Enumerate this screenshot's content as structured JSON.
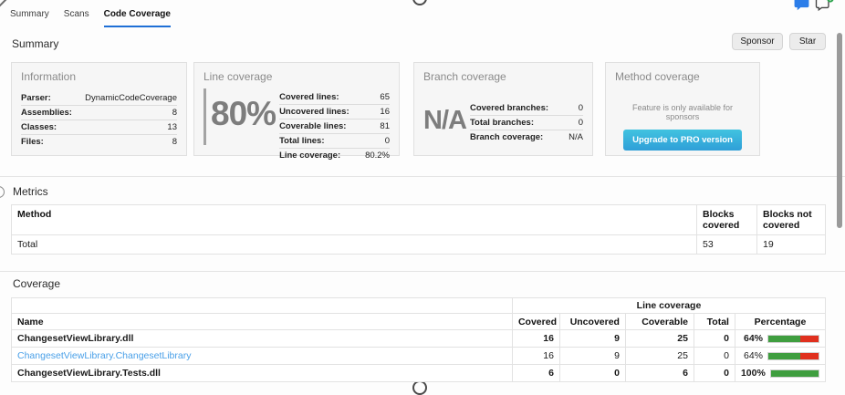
{
  "colors": {
    "tab_accent": "#1f6fd6",
    "link_blue": "#4aa0e8",
    "bar_green": "#3f9e3f",
    "bar_red": "#e0301e",
    "pro_top": "#41c3e0",
    "pro_bottom": "#2f9fd8"
  },
  "tabs": [
    {
      "label": "Summary"
    },
    {
      "label": "Scans"
    },
    {
      "label": "Code Coverage"
    }
  ],
  "summary": {
    "heading": "Summary",
    "sponsor_button": "Sponsor",
    "star_button": "Star",
    "information_card": {
      "title": "Information",
      "rows": [
        {
          "label": "Parser:",
          "value": "DynamicCodeCoverage"
        },
        {
          "label": "Assemblies:",
          "value": "8"
        },
        {
          "label": "Classes:",
          "value": "13"
        },
        {
          "label": "Files:",
          "value": "8"
        }
      ]
    },
    "line_coverage_card": {
      "title": "Line coverage",
      "big_value": "80%",
      "rows": [
        {
          "label": "Covered lines:",
          "value": "65"
        },
        {
          "label": "Uncovered lines:",
          "value": "16"
        },
        {
          "label": "Coverable lines:",
          "value": "81"
        },
        {
          "label": "Total lines:",
          "value": "0"
        },
        {
          "label": "Line coverage:",
          "value": "80.2%"
        }
      ]
    },
    "branch_coverage_card": {
      "title": "Branch coverage",
      "big_value": "N/A",
      "rows": [
        {
          "label": "Covered branches:",
          "value": "0"
        },
        {
          "label": "Total branches:",
          "value": "0"
        },
        {
          "label": "Branch coverage:",
          "value": "N/A"
        }
      ]
    },
    "method_coverage_card": {
      "title": "Method coverage",
      "note": "Feature is only available for sponsors",
      "upgrade_button": "Upgrade to PRO version"
    }
  },
  "metrics": {
    "heading": "Metrics",
    "columns": [
      "Method",
      "Blocks covered",
      "Blocks not covered"
    ],
    "rows": [
      {
        "method": "Total",
        "blocks_covered": "53",
        "blocks_not_covered": "19"
      }
    ]
  },
  "coverage": {
    "heading": "Coverage",
    "group_header": "Line coverage",
    "columns": [
      "Name",
      "Covered",
      "Uncovered",
      "Coverable",
      "Total",
      "Percentage"
    ],
    "rows": [
      {
        "name": "ChangesetViewLibrary.dll",
        "covered": "16",
        "uncovered": "9",
        "coverable": "25",
        "total": "0",
        "percentage": "64%",
        "pct": 64
      },
      {
        "name": "ChangesetViewLibrary.ChangesetLibrary",
        "covered": "16",
        "uncovered": "9",
        "coverable": "25",
        "total": "0",
        "percentage": "64%",
        "pct": 64
      },
      {
        "name": "ChangesetViewLibrary.Tests.dll",
        "covered": "6",
        "uncovered": "0",
        "coverable": "6",
        "total": "0",
        "percentage": "100%",
        "pct": 100
      }
    ]
  }
}
